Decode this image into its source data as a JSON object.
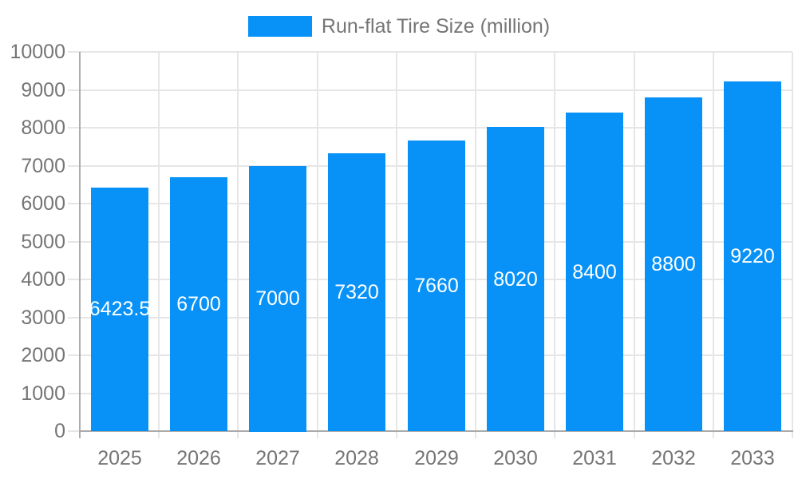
{
  "legend": {
    "label": "Run-flat Tire Size (million)"
  },
  "colors": {
    "bar": "#0892F8",
    "axis_text": "#757575",
    "grid": "#E6E6E6",
    "axis_line": "#ABABAB",
    "value_label": "#FFFFFF",
    "background": "#FFFFFF"
  },
  "chart_data": {
    "type": "bar",
    "title": "",
    "categories": [
      "2025",
      "2026",
      "2027",
      "2028",
      "2029",
      "2030",
      "2031",
      "2032",
      "2033"
    ],
    "series": [
      {
        "name": "Run-flat Tire Size (million)",
        "values": [
          6423.5,
          6700,
          7000,
          7320,
          7660,
          8020,
          8400,
          8800,
          9220
        ]
      }
    ],
    "value_labels": [
      "6423.5",
      "6700",
      "7000",
      "7320",
      "7660",
      "8020",
      "8400",
      "8800",
      "9220"
    ],
    "xlabel": "",
    "ylabel": "",
    "ylim": [
      0,
      10000
    ],
    "ytick_step": 1000,
    "grid": true,
    "legend_position": "top",
    "data_labels_position": "bar-center"
  }
}
